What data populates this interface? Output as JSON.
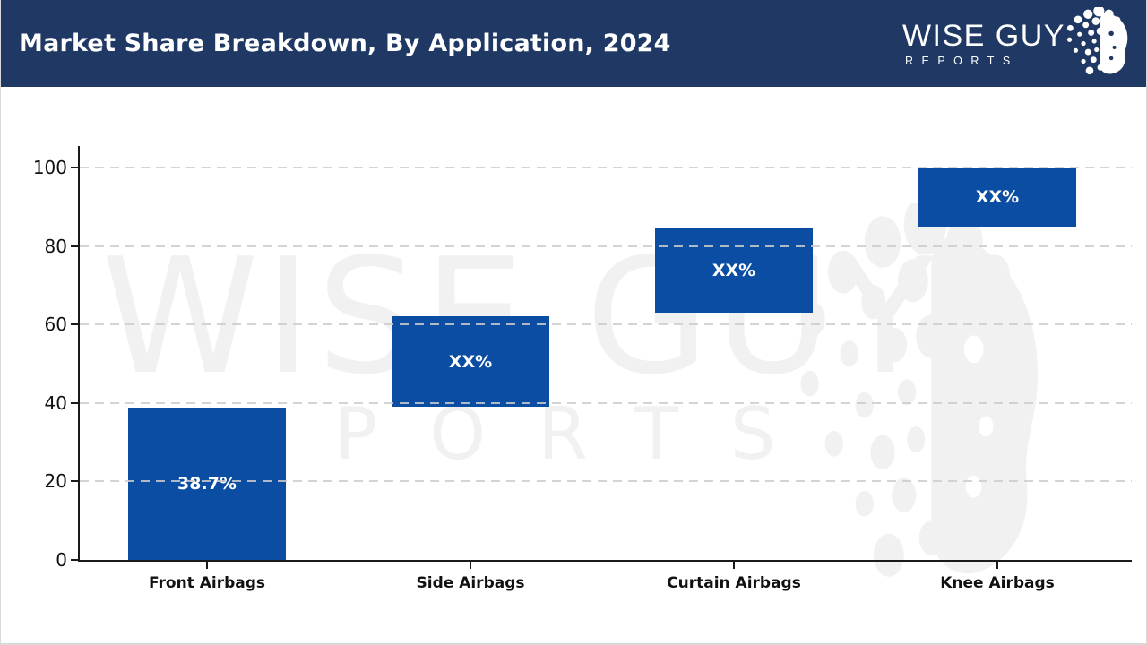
{
  "header": {
    "title": "Market Share Breakdown, By Application, 2024",
    "logo": {
      "wordmark": "WISE GUY",
      "subtext": "REPORTS"
    }
  },
  "watermark": {
    "wordmark": "WISE GUY",
    "subtext": "PORTS"
  },
  "chart_data": {
    "type": "bar",
    "subtype": "floating-segment-waterfall",
    "title": "Market Share Breakdown, By Application, 2024",
    "categories": [
      "Front Airbags",
      "Side Airbags",
      "Curtain Airbags",
      "Knee Airbags"
    ],
    "series": [
      {
        "name": "Market share (%)",
        "segments": [
          {
            "category": "Front Airbags",
            "base": 0,
            "top": 38.7,
            "label": "38.7%"
          },
          {
            "category": "Side Airbags",
            "base": 39,
            "top": 62,
            "label": "XX%"
          },
          {
            "category": "Curtain Airbags",
            "base": 63,
            "top": 84.5,
            "label": "XX%"
          },
          {
            "category": "Knee Airbags",
            "base": 85,
            "top": 100,
            "label": "XX%"
          }
        ]
      }
    ],
    "xlabel": "",
    "ylabel": "",
    "ylim": [
      0,
      100
    ],
    "yticks": [
      0,
      20,
      40,
      60,
      80,
      100
    ],
    "grid": "horizontal-dashed",
    "legend": "none",
    "colors": {
      "bar": "#0b4da2",
      "bar_label": "#ffffff",
      "grid": "#cdcdcd",
      "axis": "#1a1a1a",
      "header_bg": "#1f3864",
      "header_text": "#ffffff",
      "watermark": "#f1f1f1"
    }
  }
}
